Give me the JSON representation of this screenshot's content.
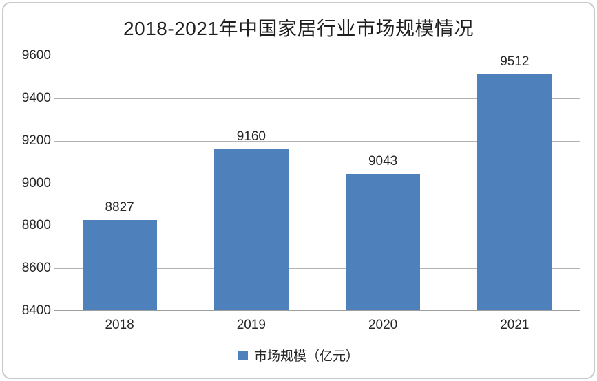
{
  "chart_data": {
    "type": "bar",
    "title": "2018-2021年中国家居行业市场规模情况",
    "categories": [
      "2018",
      "2019",
      "2020",
      "2021"
    ],
    "values": [
      8827,
      9160,
      9043,
      9512
    ],
    "series_name": "市场规模（亿元）",
    "legend_label": "市场规模（亿元）",
    "ylim": [
      8400,
      9600
    ],
    "yticks": [
      8400,
      8600,
      8800,
      9000,
      9200,
      9400,
      9600
    ],
    "ytick_step": 200,
    "grid": true,
    "data_labels": true,
    "legend_position": "bottom",
    "xlabel": "",
    "ylabel": ""
  },
  "colors": {
    "bar": "#4e81bc",
    "gridline": "#b3b3b3",
    "axis": "#9e9e9e",
    "frame_border": "#c9c9c9",
    "text": "#262626",
    "background": "#ffffff"
  }
}
